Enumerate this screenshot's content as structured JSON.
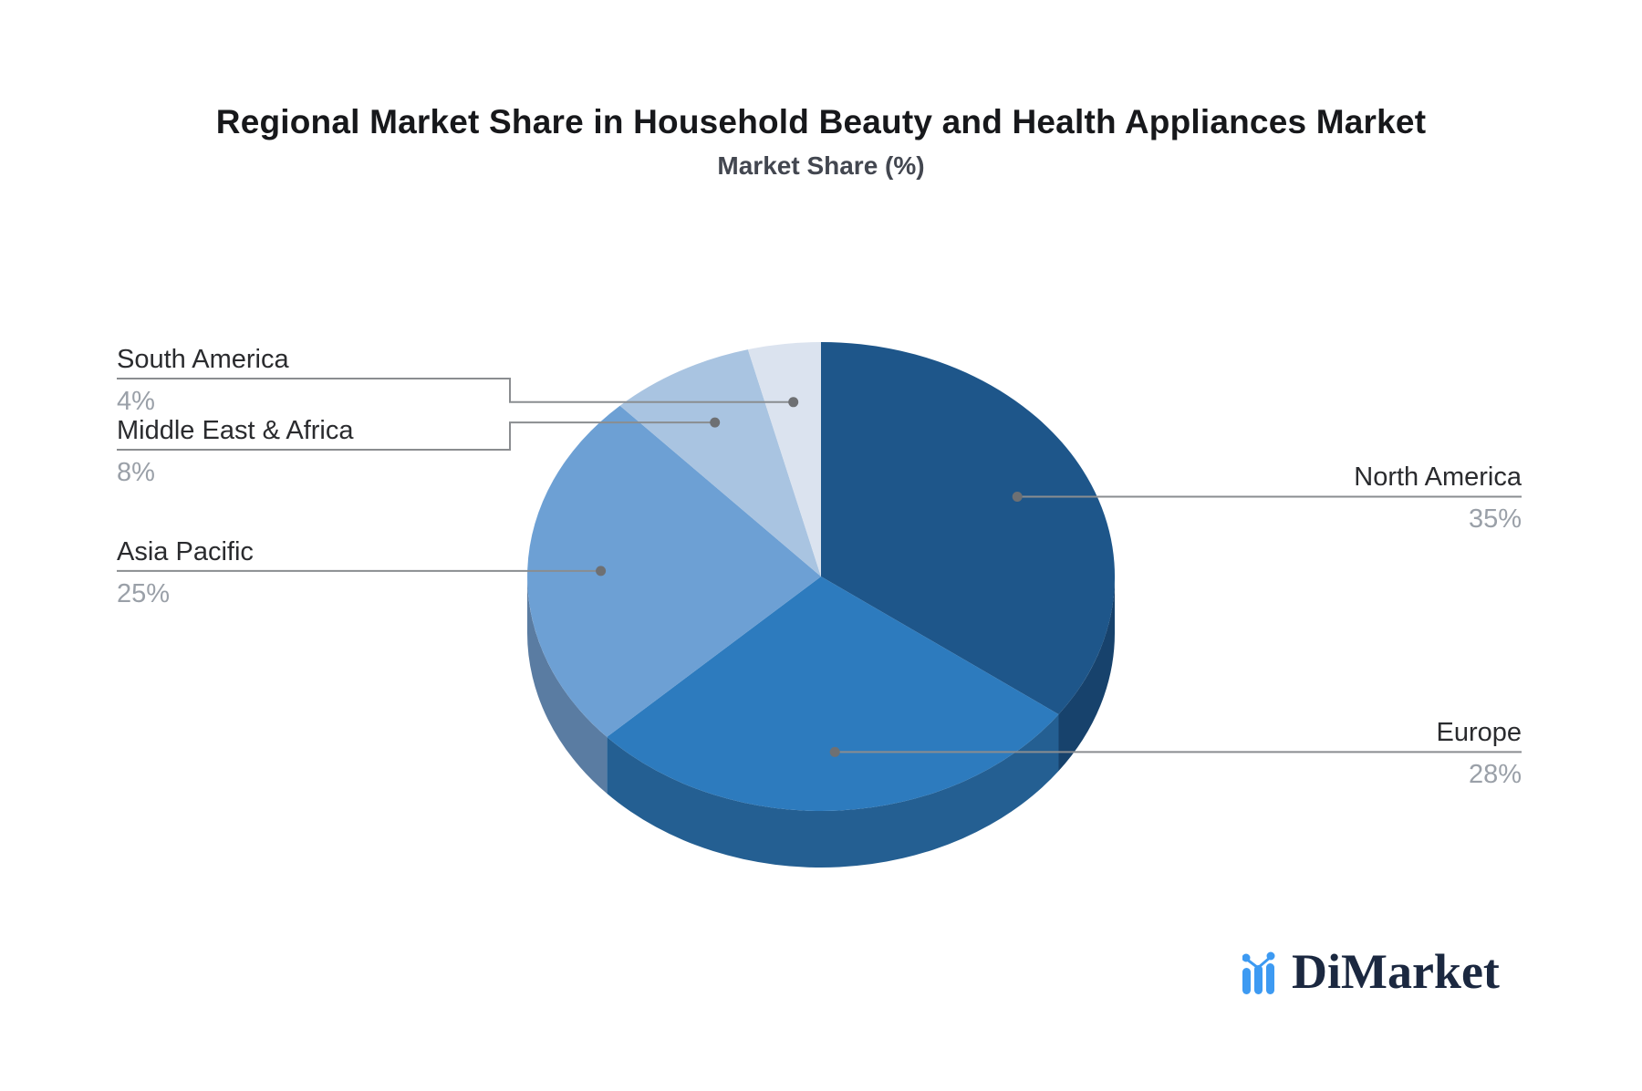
{
  "title": "Regional Market Share in Household Beauty and Health Appliances Market",
  "subtitle": "Market Share (%)",
  "chart_data": {
    "type": "pie",
    "title": "Regional Market Share in Household Beauty and Health Appliances Market",
    "subtitle": "Market Share (%)",
    "unit": "%",
    "effect": "3d",
    "direction": "clockwise",
    "start_angle_deg": 0,
    "legend": "none",
    "labels_position": "outside-with-leader-lines",
    "leader_line_color": "#8a8d90",
    "leader_dot_color": "#6e7073",
    "label_name_color": "#2a2b2e",
    "label_value_color": "#9aa0a8",
    "slices": [
      {
        "label": "North America",
        "value": 35,
        "pct": "35%",
        "color": "#1e568a",
        "side_color": "#17426c",
        "label_side": "right"
      },
      {
        "label": "Europe",
        "value": 28,
        "pct": "28%",
        "color": "#2d7bbe",
        "side_color": "#245f92",
        "label_side": "right"
      },
      {
        "label": "Asia Pacific",
        "value": 25,
        "pct": "25%",
        "color": "#6da0d4",
        "side_color": "#5a7ca2",
        "label_side": "left"
      },
      {
        "label": "Middle East & Africa",
        "value": 8,
        "pct": "8%",
        "color": "#a9c4e1",
        "side_color": "#8fa9c4",
        "label_side": "left"
      },
      {
        "label": "South America",
        "value": 4,
        "pct": "4%",
        "color": "#dbe3ef",
        "side_color": "#b9c2d1",
        "label_side": "left"
      }
    ]
  },
  "footer": {
    "brand": "DiMarket"
  }
}
